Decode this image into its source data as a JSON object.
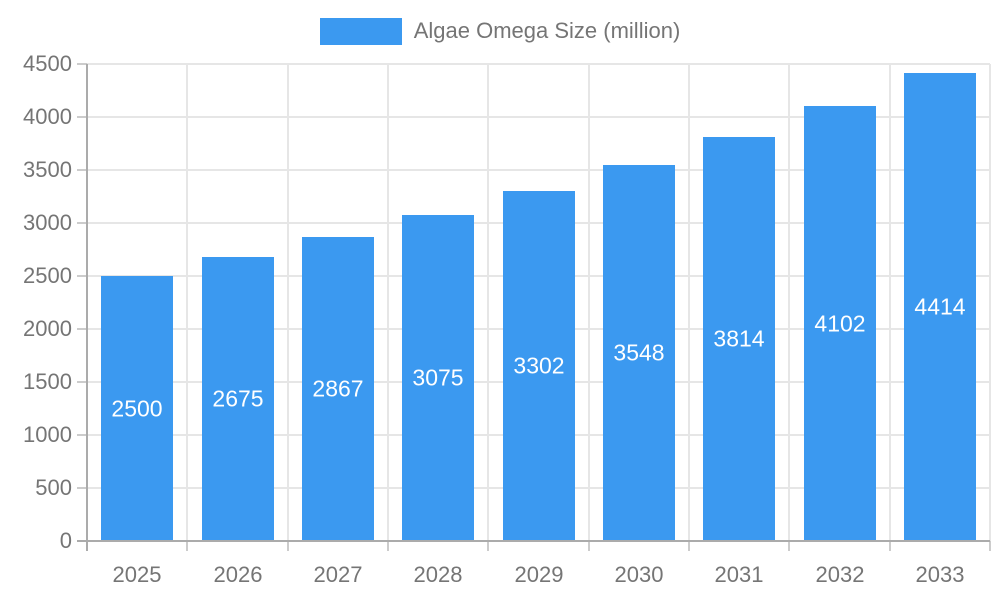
{
  "chart_data": {
    "type": "bar",
    "title": "Algae Omega Size (million)",
    "legend": {
      "position": "top",
      "label": "Algae Omega Size (million)"
    },
    "categories": [
      "2025",
      "2026",
      "2027",
      "2028",
      "2029",
      "2030",
      "2031",
      "2032",
      "2033"
    ],
    "values": [
      2500,
      2675,
      2867,
      3075,
      3302,
      3548,
      3814,
      4102,
      4414
    ],
    "xlabel": "",
    "ylabel": "",
    "ylim": [
      0,
      4500
    ],
    "yticks": [
      0,
      500,
      1000,
      1500,
      2000,
      2500,
      3000,
      3500,
      4000,
      4500
    ],
    "grid": true,
    "colors": {
      "bar": "#3B99F0",
      "bar_label_text": "#ffffff",
      "axis_text": "#757575",
      "grid_line": "#e6e6e6",
      "axis_line": "#ababab",
      "tick": "#cccccc"
    }
  }
}
